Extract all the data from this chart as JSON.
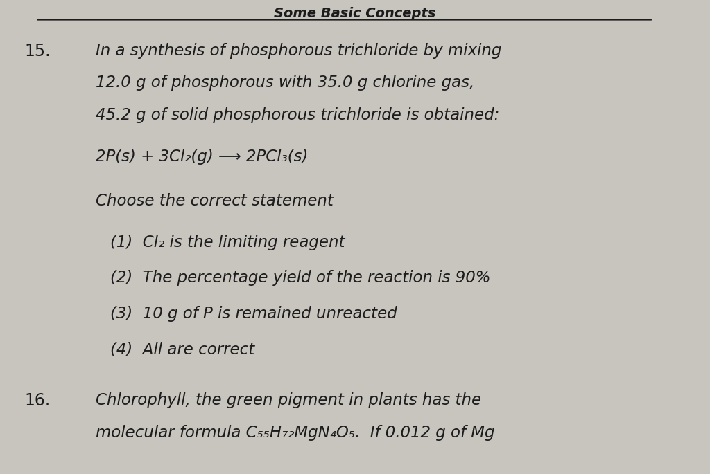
{
  "background_color": "#c8c4be",
  "text_color": "#1c1c1c",
  "q15_number": "15.",
  "q15_line1": "In a synthesis of phosphorous trichloride by mixing",
  "q15_line2": "12.0 g of phosphorous with 35.0 g chlorine gas,",
  "q15_line3": "45.2 g of solid phosphorous trichloride is obtained:",
  "equation": "2P(s) + 3Cl₂(g) ⟶ 2PCl₃(s)",
  "choose_text": "Choose the correct statement",
  "opt1": "(1)  Cl₂ is the limiting reagent",
  "opt2": "(2)  The percentage yield of the reaction is 90%",
  "opt3": "(3)  10 g of P is remained unreacted",
  "opt4": "(4)  All are correct",
  "q16_number": "16.",
  "q16_line1": "Chlorophyll, the green pigment in plants has the",
  "q16_line2": "molecular formula C₅₅H₇₂MgN₄O₅.  If 0.012 g of Mg",
  "top_text": "Some Basic Concepts",
  "font_size": 16.5,
  "font_size_small": 16.5,
  "number_font_size": 17
}
